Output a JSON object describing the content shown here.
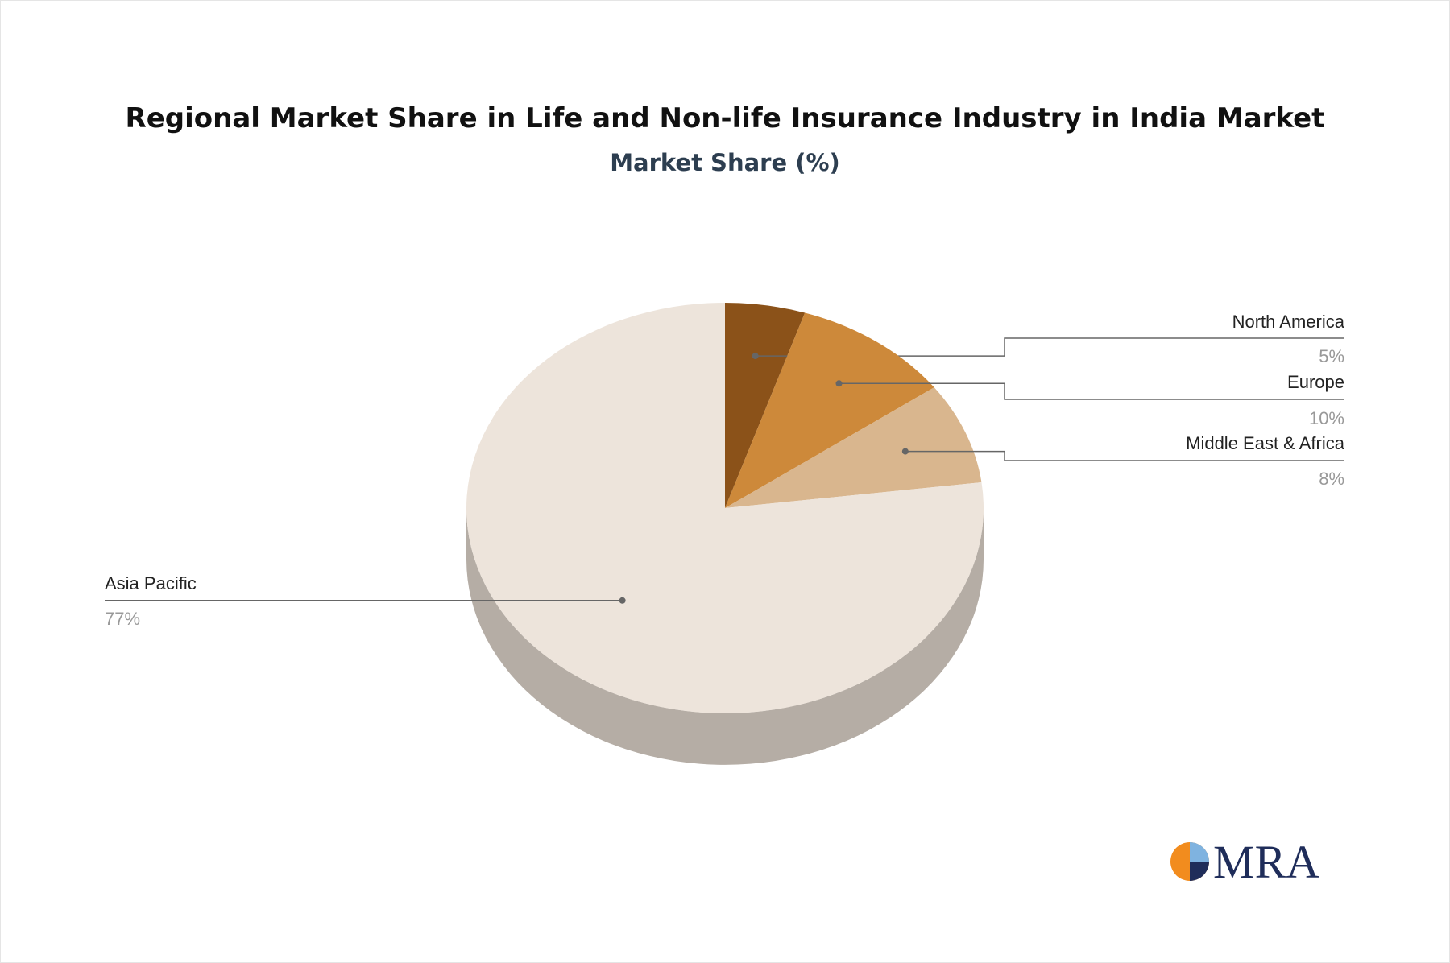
{
  "chart_data": {
    "type": "pie",
    "title": "Regional Market Share in Life and Non-life Insurance Industry in India Market",
    "subtitle": "Market Share (%)",
    "categories": [
      "North America",
      "Europe",
      "Middle East & Africa",
      "Asia Pacific"
    ],
    "values": [
      5,
      10,
      8,
      77
    ],
    "value_labels": [
      "5%",
      "10%",
      "8%",
      "77%"
    ],
    "colors": [
      "#8b5219",
      "#cd893a",
      "#d9b68e",
      "#ede4db"
    ]
  },
  "logo": "MRA"
}
